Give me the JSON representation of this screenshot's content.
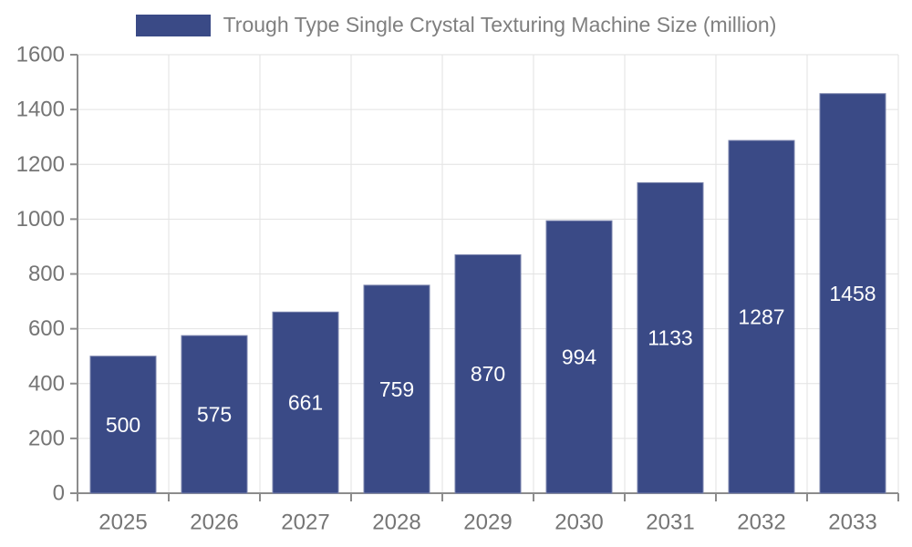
{
  "chart_data": {
    "type": "bar",
    "title": "Trough Type Single Crystal Texturing Machine Size (million)",
    "categories": [
      "2025",
      "2026",
      "2027",
      "2028",
      "2029",
      "2030",
      "2031",
      "2032",
      "2033"
    ],
    "values": [
      500,
      575,
      661,
      759,
      870,
      994,
      1133,
      1287,
      1458
    ],
    "series_name": "Trough Type Single Crystal Texturing Machine Size (million)",
    "xlabel": "",
    "ylabel": "",
    "ylim": [
      0,
      1600
    ],
    "ytick_step": 200,
    "ytick_labels": [
      "0",
      "200",
      "400",
      "600",
      "800",
      "1000",
      "1200",
      "1400",
      "1600"
    ],
    "grid": true,
    "legend_position": "top",
    "value_labels_inside_bars": true,
    "colors": {
      "bar_fill": "#3a4a86",
      "bar_edge": "#7b84ad",
      "grid_line": "#e2e2e2",
      "axis_line": "#8c8c8c",
      "tick_label": "#757575",
      "title_text": "#7f7f7f",
      "value_label": "#ffffff",
      "background": "#ffffff"
    }
  }
}
